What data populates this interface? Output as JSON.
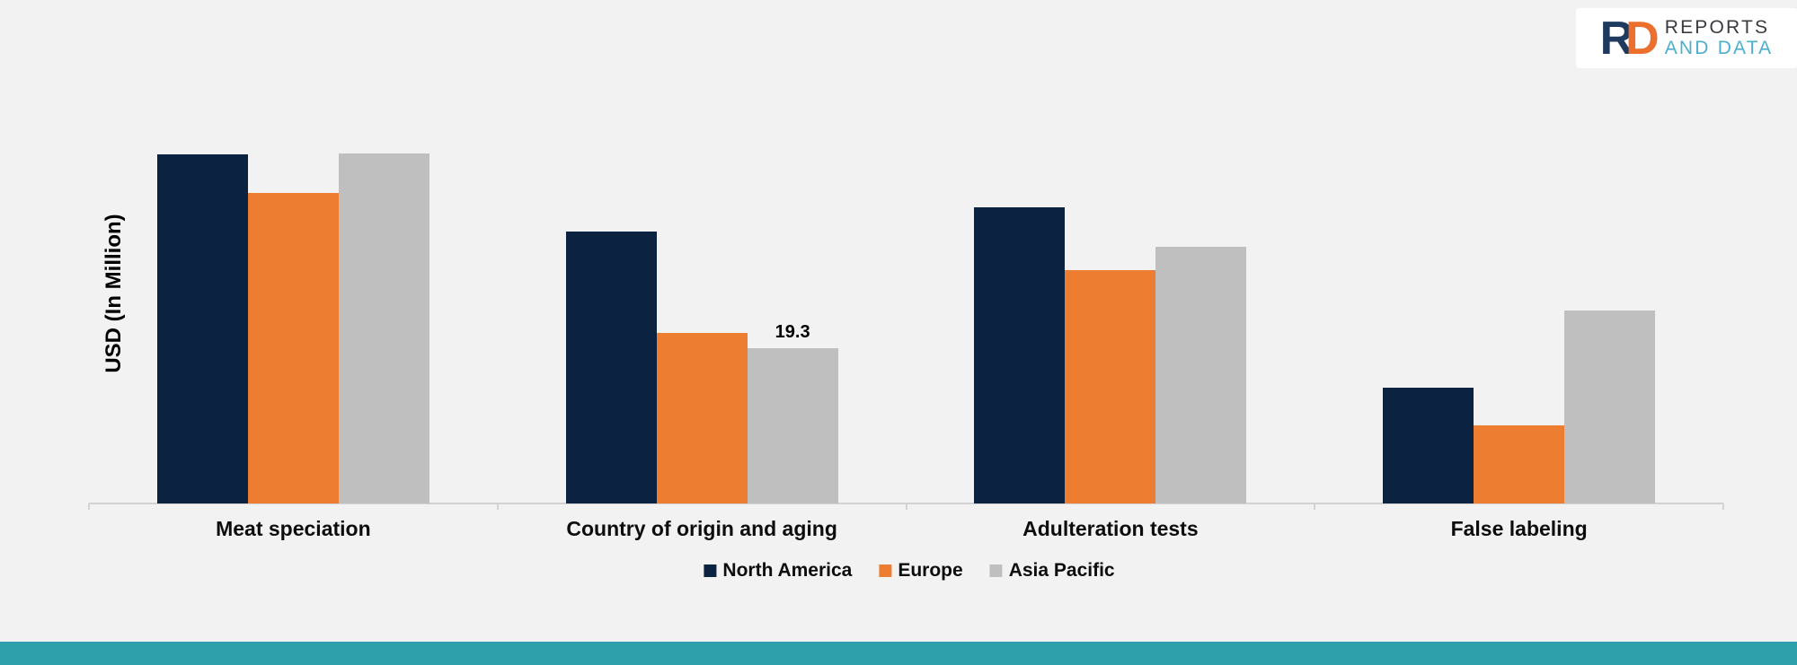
{
  "page": {
    "background": "#f2f2f2",
    "footer_bar_color": "#2da0ab"
  },
  "logo": {
    "mark_r": "R",
    "mark_d": "D",
    "mark_r_color": "#1e3a5f",
    "mark_d_color": "#ec6f2d",
    "line1": "REPORTS",
    "line2": "AND DATA",
    "line1_color": "#3a3b3f",
    "line2_color": "#4bafcf"
  },
  "chart_data": {
    "type": "bar",
    "title": "",
    "xlabel": "",
    "ylabel": "USD (In Million)",
    "categories": [
      "Meat speciation",
      "Country of origin and aging",
      "Adulteration tests",
      "False labeling"
    ],
    "series": [
      {
        "name": "North America",
        "color": "#0b2240",
        "values": [
          43.4,
          33.8,
          36.8,
          14.4
        ],
        "point_labels": [
          "",
          "",
          "",
          ""
        ]
      },
      {
        "name": "Europe",
        "color": "#ed7d31",
        "values": [
          38.6,
          21.2,
          29.0,
          9.7
        ],
        "point_labels": [
          "",
          "",
          "",
          ""
        ]
      },
      {
        "name": "Asia Pacific",
        "color": "#bfbfbf",
        "values": [
          43.5,
          19.3,
          31.9,
          24.0
        ],
        "point_labels": [
          "",
          "19.3",
          "",
          ""
        ]
      }
    ],
    "ylim": [
      0,
      48
    ],
    "grid": false,
    "legend_position": "bottom",
    "axis_color": "#d2d2d2",
    "units": "USD Million"
  }
}
